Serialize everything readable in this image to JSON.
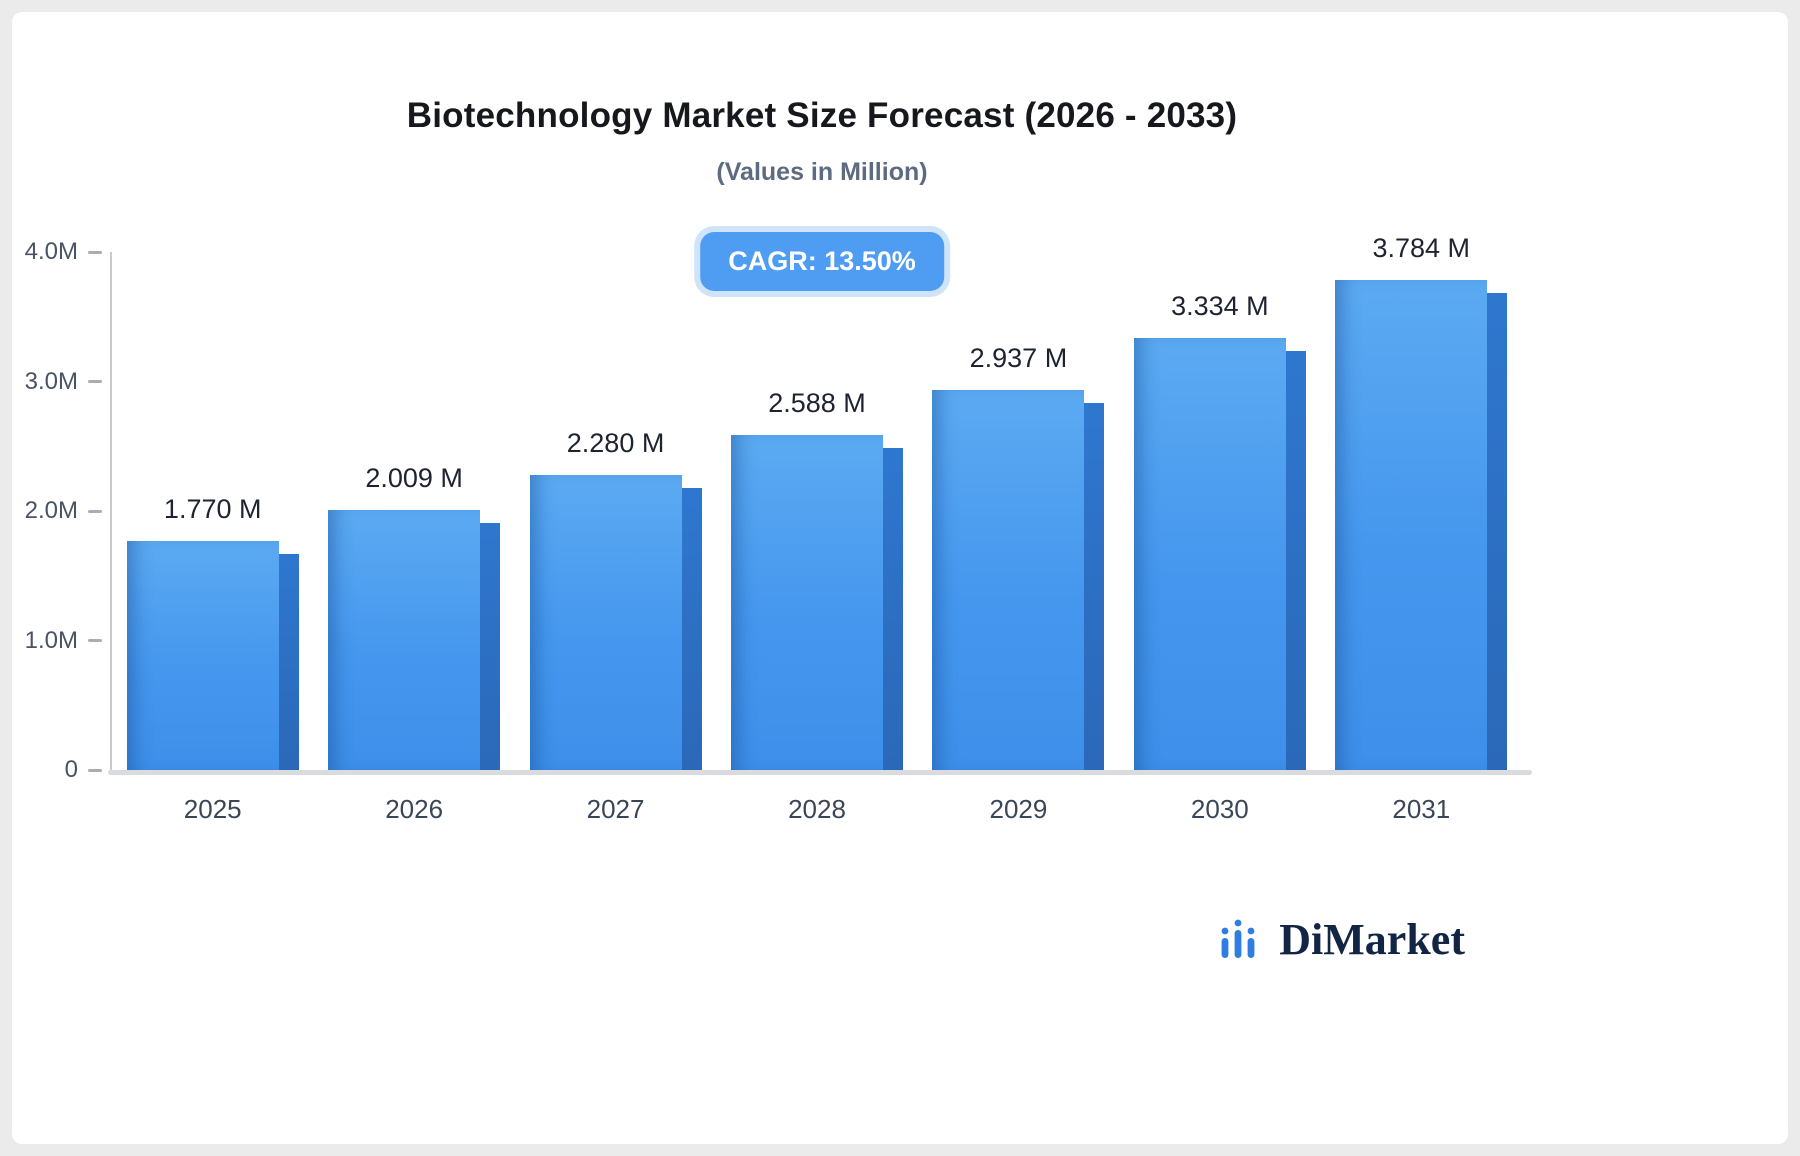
{
  "header": {
    "title": "Biotechnology Market Size Forecast (2026 - 2033)",
    "subtitle": "(Values in Million)"
  },
  "badge": {
    "label": "CAGR: 13.50%"
  },
  "chart_data": {
    "type": "bar",
    "title": "Biotechnology Market Size Forecast (2026 - 2033)",
    "subtitle": "(Values in Million)",
    "categories": [
      "2025",
      "2026",
      "2027",
      "2028",
      "2029",
      "2030",
      "2031"
    ],
    "values": [
      1.77,
      2.009,
      2.28,
      2.588,
      2.937,
      3.334,
      3.784
    ],
    "value_labels": [
      "1.770 M",
      "2.009 M",
      "2.280 M",
      "2.588 M",
      "2.937 M",
      "3.334 M",
      "3.784 M"
    ],
    "xlabel": "",
    "ylabel": "",
    "ylim": [
      0,
      4.0
    ],
    "yticks": [
      {
        "label": "4.0M",
        "value": 4.0
      },
      {
        "label": "3.0M",
        "value": 3.0
      },
      {
        "label": "2.0M",
        "value": 2.0
      },
      {
        "label": "1.0M",
        "value": 1.0
      },
      {
        "label": "0",
        "value": 0.0
      }
    ],
    "grid": "off",
    "legend": "none",
    "cagr": "13.50%"
  },
  "logo": {
    "text": "DiMarket"
  },
  "colors": {
    "accent": "#4f9df3",
    "accent_ring": "#cfe3fb",
    "bar_top": "#5caaf2",
    "bar_mid": "#4597ee",
    "bar_bottom": "#3d8fe9",
    "bar_side1": "#2e77cf",
    "bar_side2": "#2b68b8",
    "logo_navy": "#132544",
    "logo_blue": "#2f7de1"
  }
}
